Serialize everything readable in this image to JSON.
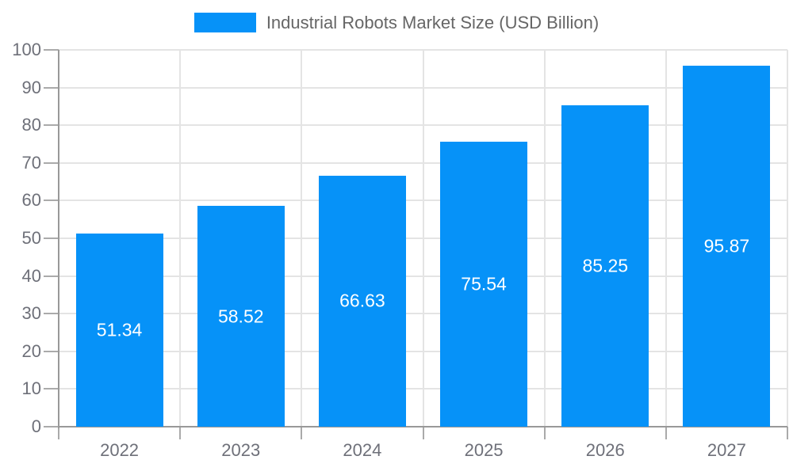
{
  "chart_data": {
    "type": "bar",
    "title": "Industrial Robots Market Size (USD Billion)",
    "legend": {
      "position": "top",
      "entries": [
        "Industrial Robots Market Size (USD Billion)"
      ]
    },
    "categories": [
      "2022",
      "2023",
      "2024",
      "2025",
      "2026",
      "2027"
    ],
    "series": [
      {
        "name": "Industrial Robots Market Size (USD Billion)",
        "values": [
          51.34,
          58.52,
          66.63,
          75.54,
          85.25,
          95.87
        ]
      }
    ],
    "value_labels": [
      "51.34",
      "58.52",
      "66.63",
      "75.54",
      "85.25",
      "95.87"
    ],
    "value_label_position": "inside-center",
    "xlabel": "",
    "ylabel": "",
    "ylim": [
      0,
      100
    ],
    "ytick_step": 10,
    "ytick_labels": [
      "0",
      "10",
      "20",
      "30",
      "40",
      "50",
      "60",
      "70",
      "80",
      "90",
      "100"
    ],
    "grid": true,
    "colors": {
      "bar": "#0692F8",
      "bar_value_text": "#FFFFFF",
      "axis_line": "#999999",
      "tick": "#AAAAAA",
      "gridline": "#E4E4E4",
      "axis_text": "#6E7079",
      "legend_text": "#666666",
      "background": "#FFFFFF"
    }
  }
}
